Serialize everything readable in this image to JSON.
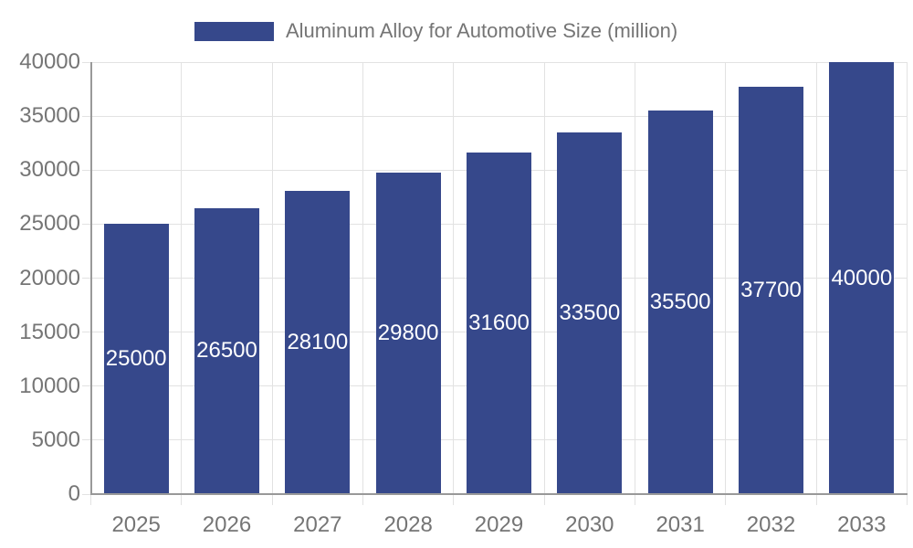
{
  "legend": {
    "label": "Aluminum Alloy for Automotive Size (million)",
    "swatch_color": "#36488B"
  },
  "chart_data": {
    "type": "bar",
    "title": "Aluminum Alloy for Automotive Size (million)",
    "categories": [
      "2025",
      "2026",
      "2027",
      "2028",
      "2029",
      "2030",
      "2031",
      "2032",
      "2033"
    ],
    "values": [
      25000,
      26500,
      28100,
      29800,
      31600,
      33500,
      35500,
      37700,
      40000
    ],
    "xlabel": "",
    "ylabel": "",
    "ylim": [
      0,
      40000
    ],
    "yticks": [
      0,
      5000,
      10000,
      15000,
      20000,
      25000,
      30000,
      35000,
      40000
    ],
    "grid": true,
    "legend_position": "top",
    "bar_color": "#36488B",
    "bar_label_color": "#ffffff",
    "axis_text_color": "#757575",
    "grid_color": "#e2e2e2",
    "axis_line_color": "#999999",
    "background": "#ffffff"
  }
}
